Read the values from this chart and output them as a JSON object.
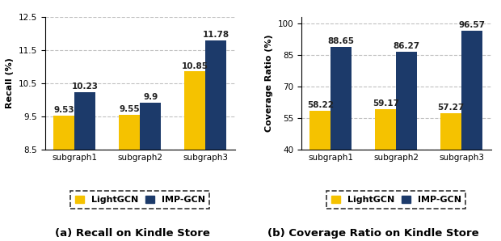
{
  "chart_a": {
    "title": "(a) Recall on Kindle Store",
    "ylabel": "Recall (%)",
    "categories": [
      "subgraph1",
      "subgraph2",
      "subgraph3"
    ],
    "lightgcn_values": [
      9.53,
      9.55,
      10.85
    ],
    "impgcn_values": [
      10.23,
      9.9,
      11.78
    ],
    "ylim": [
      8.5,
      12.5
    ],
    "yticks": [
      8.5,
      9.5,
      10.5,
      11.5,
      12.5
    ]
  },
  "chart_b": {
    "title": "(b) Coverage Ratio on Kindle Store",
    "ylabel": "Coverage Ratio (%)",
    "categories": [
      "subgraph1",
      "subgraph2",
      "subgraph3"
    ],
    "lightgcn_values": [
      58.22,
      59.17,
      57.27
    ],
    "impgcn_values": [
      88.65,
      86.27,
      96.57
    ],
    "ylim": [
      40,
      103
    ],
    "yticks": [
      40,
      55,
      70,
      85,
      100
    ]
  },
  "bar_colors": {
    "lightgcn": "#F5C200",
    "impgcn": "#1C3A6A"
  },
  "legend_labels": [
    "LightGCN",
    "IMP-GCN"
  ],
  "bar_width": 0.32,
  "label_fontsize": 8,
  "title_fontsize": 9.5,
  "tick_fontsize": 7.5,
  "ylabel_fontsize": 8,
  "annot_fontsize": 7.5
}
